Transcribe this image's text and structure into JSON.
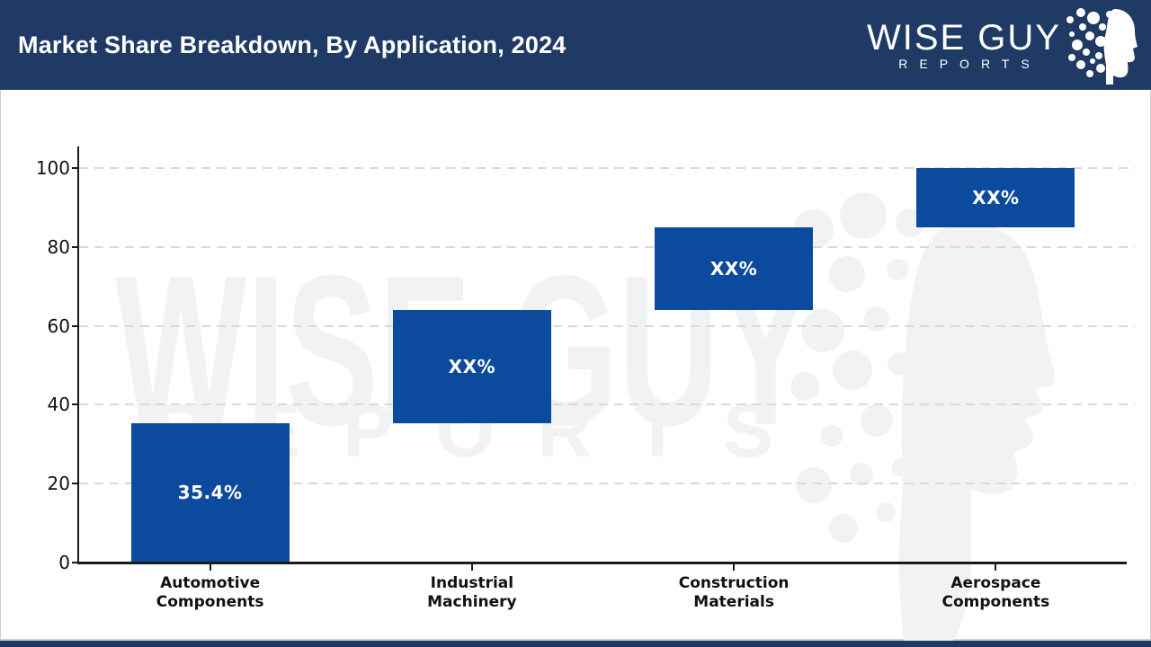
{
  "header": {
    "title": "Market Share Breakdown, By Application, 2024",
    "brand": {
      "line1": "WISE GUY",
      "line2": "REPORTS"
    }
  },
  "watermark": {
    "line1": "WISE GUY",
    "line2": "REPORTS"
  },
  "colors": {
    "header_bg": "#203a66",
    "bar": "#0b4a9c",
    "grid": "#d9d9d9",
    "axis": "#1a1a1a",
    "watermark": "#f1f2f4",
    "bar_label_text": "#ffffff"
  },
  "chart_data": {
    "type": "bar",
    "variant": "floating-waterfall",
    "title": "Market Share Breakdown, By Application, 2024",
    "categories": [
      "Automotive Components",
      "Industrial Machinery",
      "Construction Materials",
      "Aerospace Components"
    ],
    "segments": [
      {
        "category": "Automotive Components",
        "start": 0,
        "end": 35.4,
        "label": "35.4%"
      },
      {
        "category": "Industrial Machinery",
        "start": 35.4,
        "end": 64,
        "label": "XX%"
      },
      {
        "category": "Construction Materials",
        "start": 64,
        "end": 85,
        "label": "XX%"
      },
      {
        "category": "Aerospace Components",
        "start": 85,
        "end": 100,
        "label": "XX%"
      }
    ],
    "xlabel": "",
    "ylabel": "",
    "ylim": [
      0,
      100
    ],
    "yticks": [
      0,
      20,
      40,
      60,
      80,
      100
    ],
    "grid": "horizontal-dashed",
    "legend": null,
    "bar_color": "#0b4a9c"
  }
}
